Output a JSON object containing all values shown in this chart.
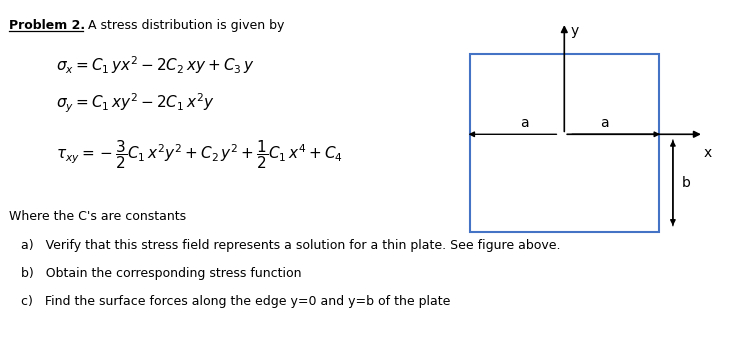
{
  "title": "Problem 2.",
  "title_suffix": " A stress distribution is given by",
  "note": "Where the C's are constants",
  "item_a": "a)   Verify that this stress field represents a solution for a thin plate. See figure above.",
  "item_b": "b)   Obtain the corresponding stress function",
  "item_c": "c)   Find the surface forces along the edge y=0 and y=b of the plate",
  "bg_color": "#ffffff",
  "text_color": "#000000",
  "box_color": "#4472c4",
  "figsize": [
    7.52,
    3.38
  ],
  "dpi": 100
}
